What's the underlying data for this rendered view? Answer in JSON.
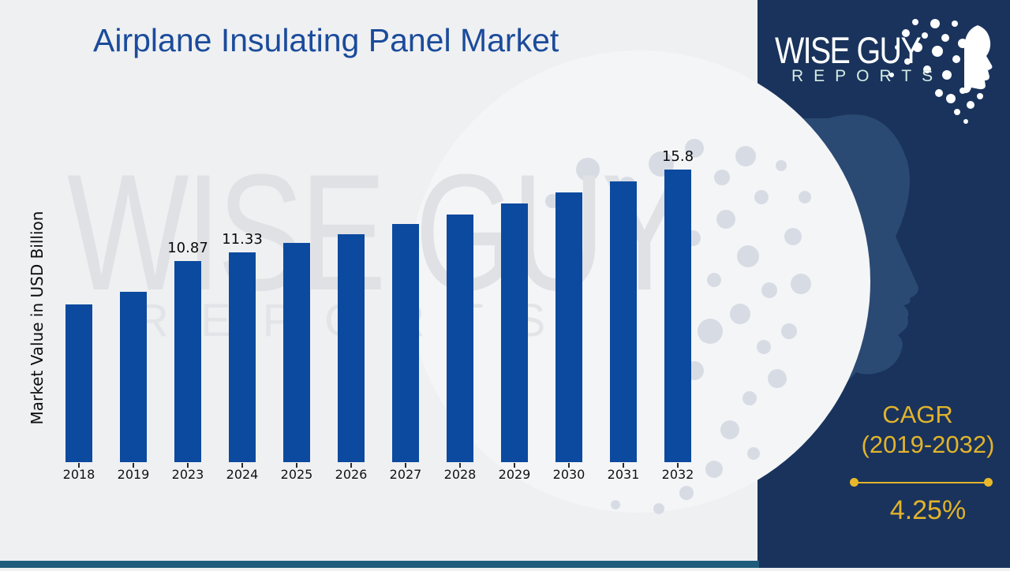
{
  "header": {
    "title": "Airplane Insulating Panel Market"
  },
  "chart_data": {
    "type": "bar",
    "title": "Airplane Insulating Panel Market",
    "xlabel": "",
    "ylabel": "Market Value in USD Billion",
    "categories": [
      "2018",
      "2019",
      "2023",
      "2024",
      "2025",
      "2026",
      "2027",
      "2028",
      "2029",
      "2030",
      "2031",
      "2032"
    ],
    "values": [
      8.5,
      9.2,
      10.87,
      11.33,
      11.81,
      12.31,
      12.84,
      13.38,
      13.95,
      14.54,
      15.16,
      15.8
    ],
    "bar_labels": {
      "2023": "10.87",
      "2024": "11.33",
      "2032": "15.8"
    },
    "ylim": [
      0,
      17
    ],
    "grid": false,
    "legend": "none",
    "bar_color": "#0b4a9f"
  },
  "watermark": {
    "line1": "WISE GUY",
    "line2": "REPORTS"
  },
  "sidebar": {
    "logo_line1": "WISE GUY",
    "logo_line2": "REPORTS",
    "face_icon": "face-profile-dots-icon",
    "cagr_label": "CAGR",
    "cagr_range": "(2019-2032)",
    "cagr_value": "4.25%"
  },
  "colors": {
    "bar": "#0b4a9f",
    "title_blue": "#1b4b9b",
    "panel_navy": "#19335c",
    "gold": "#e2b32b",
    "teal_strip": "#1f5c7b",
    "watermark_text": "#dfe1e5",
    "watermark_dots": "#d7dce4",
    "face_silhouette": "#2b4a73",
    "logo_reports_text": "#d6ece4"
  }
}
